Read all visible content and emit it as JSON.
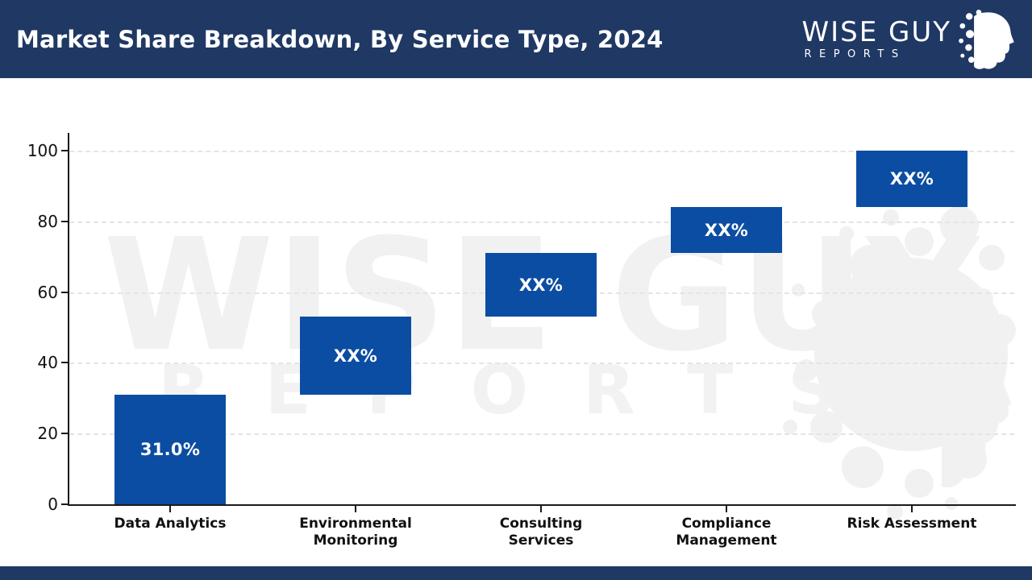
{
  "header": {
    "title": "Market Share Breakdown, By Service Type, 2024",
    "bg_color": "#1F3864",
    "logo": {
      "line1": "WISE GUY",
      "line2": "REPORTS"
    }
  },
  "watermark": {
    "line1": "WISE GUY",
    "line2": "REPORTS"
  },
  "footer": {
    "bg_color": "#1F3864"
  },
  "colors": {
    "bar": "#0B4DA2",
    "navy": "#1F3864",
    "grid": "#e4e4e4",
    "watermark": "#f1f1f1",
    "axis": "#1a1a1a"
  },
  "chart_data": {
    "type": "bar",
    "subtype": "waterfall-stacked",
    "title": "Market Share Breakdown, By Service Type, 2024",
    "categories": [
      "Data Analytics",
      "Environmental Monitoring",
      "Consulting Services",
      "Compliance Management",
      "Risk Assessment"
    ],
    "segments": [
      {
        "category": "Data Analytics",
        "label_lines": [
          "Data Analytics"
        ],
        "start": 0,
        "end": 31,
        "value": 31.0,
        "bar_label": "31.0%"
      },
      {
        "category": "Environmental Monitoring",
        "label_lines": [
          "Environmental",
          "Monitoring"
        ],
        "start": 31,
        "end": 53,
        "value": 22.0,
        "bar_label": "XX%"
      },
      {
        "category": "Consulting Services",
        "label_lines": [
          "Consulting",
          "Services"
        ],
        "start": 53,
        "end": 71,
        "value": 18.0,
        "bar_label": "XX%"
      },
      {
        "category": "Compliance Management",
        "label_lines": [
          "Compliance",
          "Management"
        ],
        "start": 71,
        "end": 84,
        "value": 13.0,
        "bar_label": "XX%"
      },
      {
        "category": "Risk Assessment",
        "label_lines": [
          "Risk Assessment"
        ],
        "start": 84,
        "end": 100,
        "value": 16.0,
        "bar_label": "XX%"
      }
    ],
    "values": [
      31.0,
      22.0,
      18.0,
      13.0,
      16.0
    ],
    "y_ticks": [
      0,
      20,
      40,
      60,
      80,
      100
    ],
    "ylim": [
      0,
      105
    ],
    "xlabel": "",
    "ylabel": "",
    "bar_color": "#0B4DA2",
    "grid": "horizontal-dashed",
    "legend": "none"
  }
}
